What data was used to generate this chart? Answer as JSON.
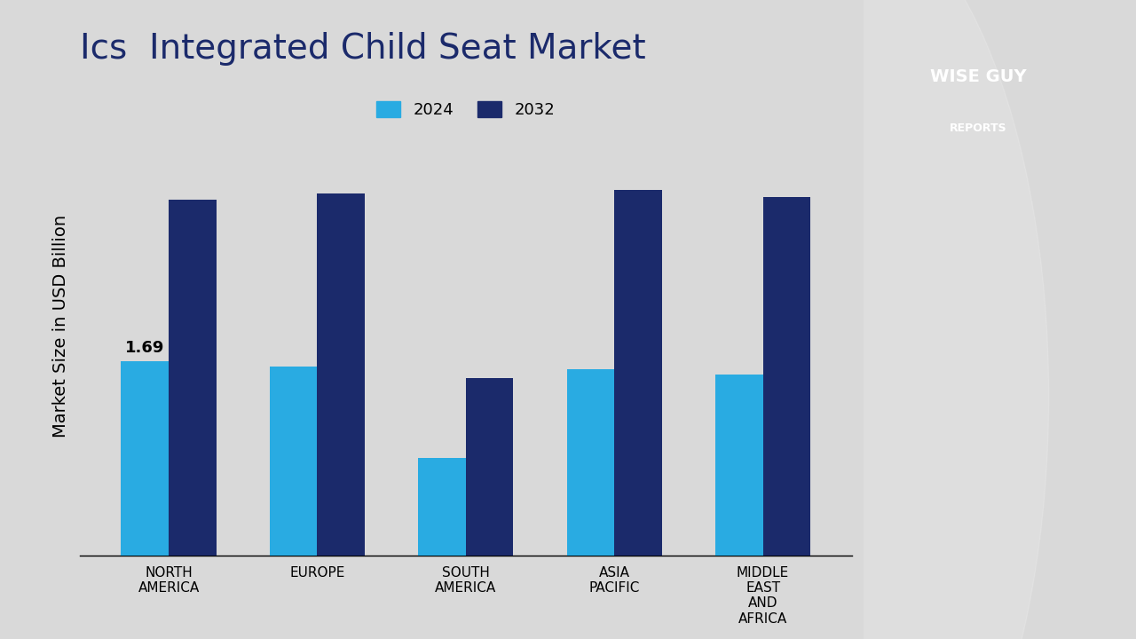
{
  "title": "Ics  Integrated Child Seat Market",
  "ylabel": "Market Size in USD Billion",
  "categories": [
    "NORTH\nAMERICA",
    "EUROPE",
    "SOUTH\nAMERICA",
    "ASIA\nPACIFIC",
    "MIDDLE\nEAST\nAND\nAFRICA"
  ],
  "values_2024": [
    1.69,
    1.65,
    0.85,
    1.62,
    1.58
  ],
  "values_2032": [
    3.1,
    3.15,
    1.55,
    3.18,
    3.12
  ],
  "color_2024": "#29ABE2",
  "color_2032": "#1B2A6B",
  "bar_annotation": "1.69",
  "bar_annotation_idx": 0,
  "background_color": "#D9D9D9",
  "right_panel_color": "#1B2A6B",
  "title_color": "#1B2A6B",
  "legend_labels": [
    "2024",
    "2032"
  ],
  "bar_width": 0.32,
  "ylim": [
    0,
    4.0
  ],
  "title_fontsize": 28,
  "ylabel_fontsize": 14,
  "tick_fontsize": 11,
  "legend_fontsize": 13
}
